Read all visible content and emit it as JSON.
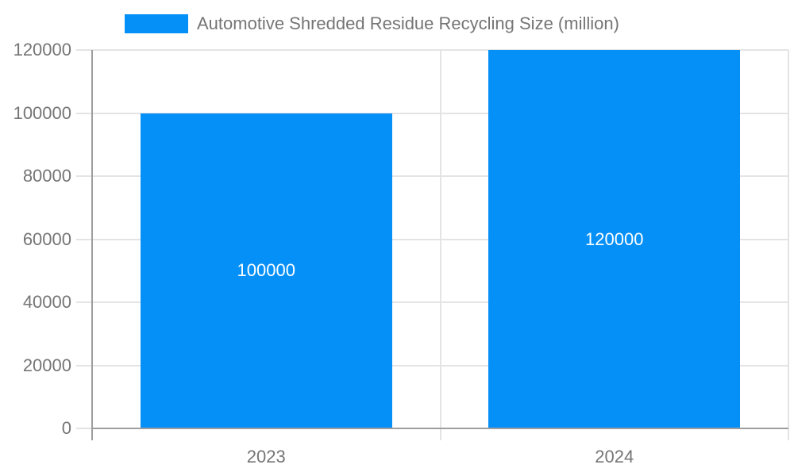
{
  "chart_data": {
    "type": "bar",
    "title": "Automotive Shredded Residue Recycling Size (million)",
    "legend_position": "top",
    "categories": [
      "2023",
      "2024"
    ],
    "series": [
      {
        "name": "Automotive Shredded Residue Recycling Size (million)",
        "values": [
          100000,
          120000
        ]
      }
    ],
    "data_labels": [
      "100000",
      "120000"
    ],
    "xlabel": "",
    "ylabel": "",
    "ylim": [
      0,
      120000
    ],
    "y_ticks": [
      0,
      20000,
      40000,
      60000,
      80000,
      100000,
      120000
    ],
    "grid": true,
    "colors": {
      "bar": "#0590F8",
      "grid": "#E4E4E4",
      "axis": "#9E9E9E",
      "text": "#757575",
      "bar_label": "#FFFFFF",
      "background": "#FFFFFF"
    }
  }
}
